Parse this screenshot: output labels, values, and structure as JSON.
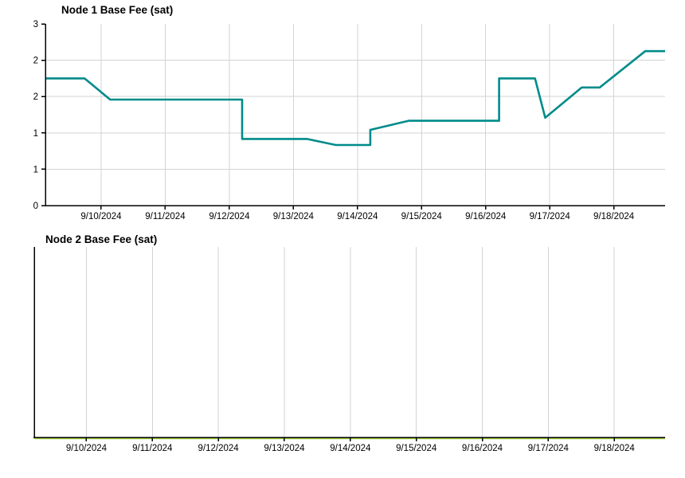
{
  "window": {
    "background_color": "#ffffff"
  },
  "chart_data": [
    {
      "type": "line",
      "title": "Node 1 Base Fee (sat)",
      "legend": "none",
      "grid": "on",
      "colors": {
        "grid": "#d3d3d3",
        "axis": "#000000",
        "labels": "#000000"
      },
      "x_axis": {
        "unit": "date",
        "min_day": 9.13,
        "max_day": 18.8,
        "tick_days": [
          10,
          11,
          12,
          13,
          14,
          15,
          16,
          17,
          18
        ],
        "tick_labels": [
          "9/10/2024",
          "9/11/2024",
          "9/12/2024",
          "9/13/2024",
          "9/14/2024",
          "9/15/2024",
          "9/16/2024",
          "9/17/2024",
          "9/18/2024"
        ]
      },
      "y_axis": {
        "min": 0,
        "max": 3,
        "interval": 0.6,
        "tick_values": [
          3,
          2.4,
          1.8,
          1.2,
          0.6,
          0
        ],
        "tick_labels": [
          "3",
          "2",
          "2",
          "1",
          "1",
          "0"
        ],
        "gridline_values": [
          2.4,
          1.8,
          1.2,
          0.6
        ]
      },
      "series": [
        {
          "name": "Node 1 Base Fee",
          "color": "#008B8B",
          "stroke_width": 2.6,
          "points_day_value": [
            [
              9.13,
              2.1
            ],
            [
              9.74,
              2.1
            ],
            [
              10.14,
              1.75
            ],
            [
              12.2,
              1.75
            ],
            [
              12.2,
              1.1
            ],
            [
              13.21,
              1.1
            ],
            [
              13.66,
              1.0
            ],
            [
              14.2,
              1.0
            ],
            [
              14.2,
              1.25
            ],
            [
              14.8,
              1.4
            ],
            [
              16.21,
              1.4
            ],
            [
              16.21,
              2.1
            ],
            [
              16.77,
              2.1
            ],
            [
              16.93,
              1.45
            ],
            [
              17.5,
              1.95
            ],
            [
              17.78,
              1.95
            ],
            [
              18.49,
              2.55
            ],
            [
              18.8,
              2.55
            ]
          ]
        }
      ]
    },
    {
      "type": "line",
      "title": "Node 2 Base Fee (sat)",
      "legend": "none",
      "grid": "vertical-only",
      "colors": {
        "grid": "#d3d3d3",
        "axis": "#000000",
        "labels": "#000000"
      },
      "x_axis": {
        "unit": "date",
        "min_day": 9.21,
        "max_day": 18.77,
        "tick_days": [
          10,
          11,
          12,
          13,
          14,
          15,
          16,
          17,
          18
        ],
        "tick_labels": [
          "9/10/2024",
          "9/11/2024",
          "9/12/2024",
          "9/13/2024",
          "9/14/2024",
          "9/15/2024",
          "9/16/2024",
          "9/17/2024",
          "9/18/2024"
        ]
      },
      "y_axis": {
        "min": 0,
        "max": 1,
        "tick_values": [],
        "tick_labels": [],
        "gridline_values": []
      },
      "series": [
        {
          "name": "Node 2 Base Fee",
          "color": "#9ACD32",
          "stroke_width": 2.2,
          "points_day_value": [
            [
              9.21,
              0
            ],
            [
              18.77,
              0
            ]
          ]
        }
      ]
    }
  ]
}
